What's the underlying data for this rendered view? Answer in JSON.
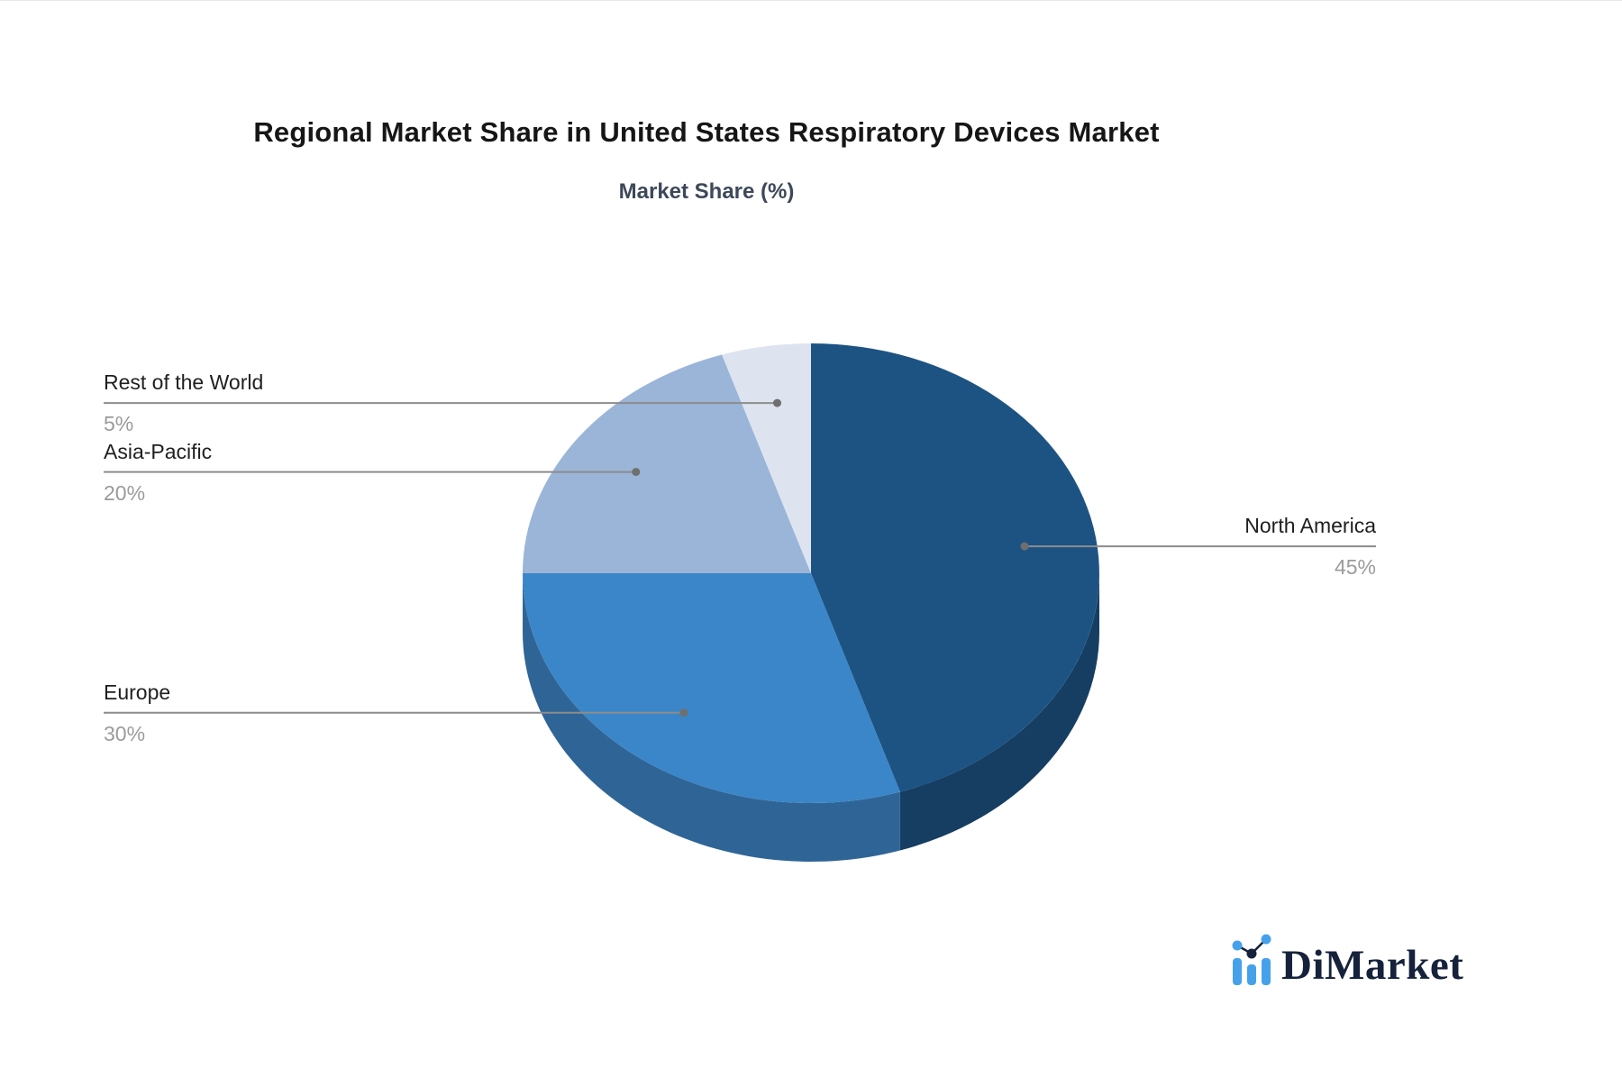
{
  "title": "Regional Market Share in United States Respiratory Devices Market",
  "subtitle": "Market Share (%)",
  "chart_data": {
    "type": "pie",
    "title": "Regional Market Share in United States Respiratory Devices Market",
    "subtitle": "Market Share (%)",
    "unit": "%",
    "style": "3d-pie",
    "direction": "clockwise",
    "start_angle_deg": 0,
    "categories": [
      "North America",
      "Europe",
      "Asia-Pacific",
      "Rest of the World"
    ],
    "values": [
      45,
      30,
      20,
      5
    ],
    "slices": [
      {
        "label": "North America",
        "value": 45,
        "display": "45%",
        "color": "#1d5383",
        "side_color": "#163e63",
        "label_side": "right"
      },
      {
        "label": "Europe",
        "value": 30,
        "display": "30%",
        "color": "#3a86c8",
        "side_color": "#2f6596",
        "label_side": "left"
      },
      {
        "label": "Asia-Pacific",
        "value": 20,
        "display": "20%",
        "color": "#9ab5d8",
        "label_side": "left"
      },
      {
        "label": "Rest of the World",
        "value": 5,
        "display": "5%",
        "color": "#dde4f0",
        "label_side": "left"
      }
    ],
    "legend": "none",
    "leader_line_color": "#8c8c8c",
    "leader_dot_color": "#6f6f6f",
    "label_color": "#1f1f1f",
    "value_color": "#9b9b9b"
  },
  "branding": {
    "logo_text": "DiMarket",
    "bar_color": "#45a2ea",
    "navy_color": "#16223c"
  }
}
